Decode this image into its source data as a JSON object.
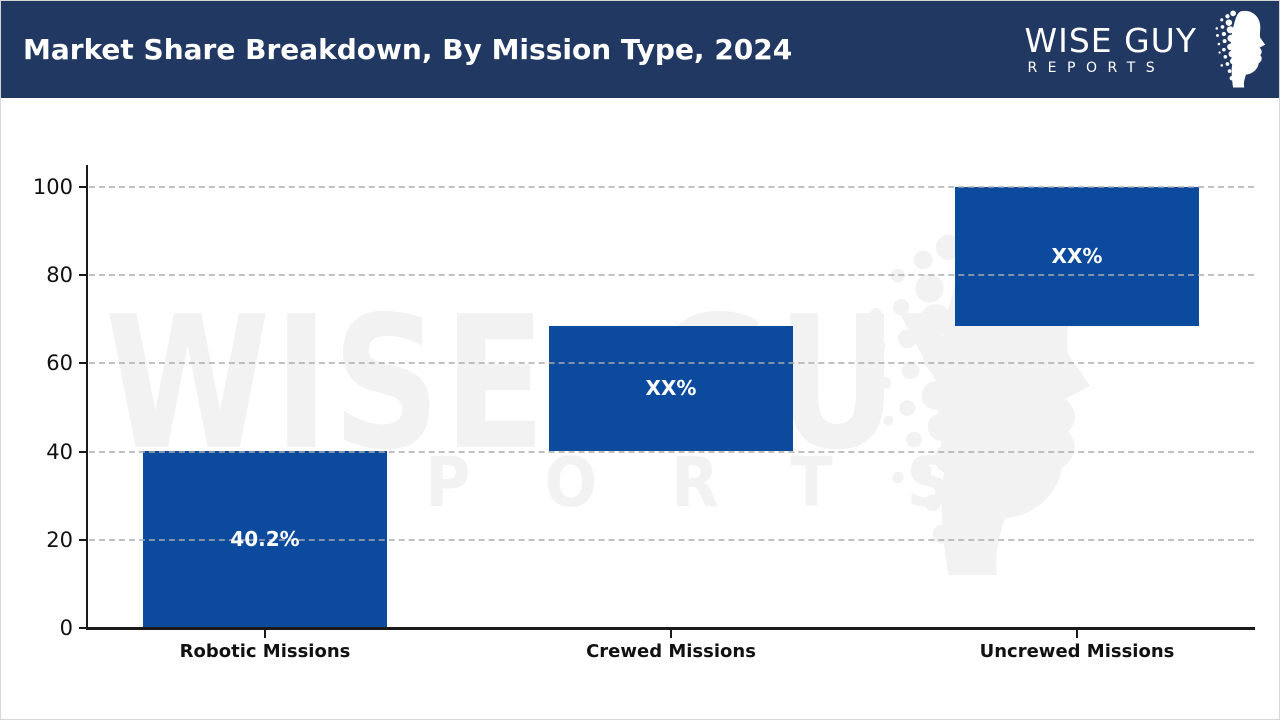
{
  "header": {
    "title": "Market Share Breakdown, By Mission Type, 2024",
    "logo_line1": "WISE GUY",
    "logo_line2": "REPORTS"
  },
  "watermark": {
    "line1": "WISE GUY",
    "line2": "REPORTS"
  },
  "colors": {
    "header_bg": "#213863",
    "bar_blue": "#0c4a9e",
    "axis": "#1a1a1a",
    "gridline": "#acacac",
    "bar_label_text": "#ffffff",
    "watermark": "#f2f2f2",
    "page_bg": "#ffffff"
  },
  "chart_data": {
    "type": "bar",
    "subtype": "floating-waterfall",
    "title": "Market Share Breakdown, By Mission Type, 2024",
    "categories": [
      "Robotic Missions",
      "Crewed Missions",
      "Uncrewed Missions"
    ],
    "bars": [
      {
        "category": "Robotic Missions",
        "label": "40.2%",
        "start": 0,
        "end": 40.2
      },
      {
        "category": "Crewed Missions",
        "label": "XX%",
        "start": 40.2,
        "end": 68.5
      },
      {
        "category": "Uncrewed Missions",
        "label": "XX%",
        "start": 68.5,
        "end": 100
      }
    ],
    "yticks": [
      0,
      20,
      40,
      60,
      80,
      100
    ],
    "ylim": [
      0,
      105
    ],
    "xlabel": "",
    "ylabel": "",
    "grid": {
      "axis": "y",
      "style": "dashed"
    },
    "legend": "none"
  }
}
